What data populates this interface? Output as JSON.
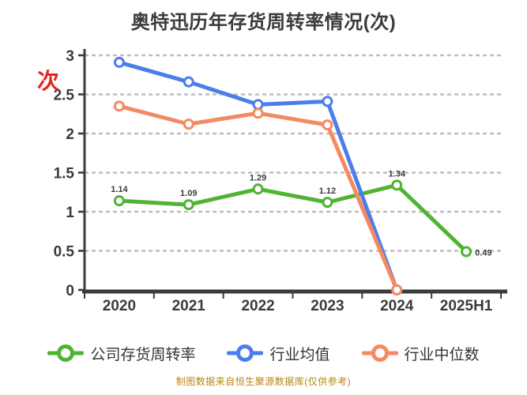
{
  "title": "奥特迅历年存货周转率情况(次)",
  "unit_label": "次",
  "caption": "制图数据来自恒生聚源数据库(仅供参考)",
  "colors": {
    "company": "#50b332",
    "industry_avg": "#4d7de8",
    "industry_median": "#f48a62",
    "unit": "#e52420",
    "caption": "#b8860e",
    "grid": "#bdbdbd",
    "axis": "#3b3b3b",
    "text": "#3b3b3b",
    "point_label": "#3b3b3b"
  },
  "chart_data": {
    "type": "line",
    "title": "奥特迅历年存货周转率情况(次)",
    "categories": [
      "2020",
      "2021",
      "2022",
      "2023",
      "2024",
      "2025H1"
    ],
    "series": [
      {
        "name": "公司存货周转率",
        "color_key": "company",
        "values": [
          1.14,
          1.09,
          1.29,
          1.12,
          1.34,
          0.49
        ],
        "show_labels": true
      },
      {
        "name": "行业均值",
        "color_key": "industry_avg",
        "values": [
          2.91,
          2.66,
          2.37,
          2.41,
          0,
          null
        ],
        "show_labels": false
      },
      {
        "name": "行业中位数",
        "color_key": "industry_median",
        "values": [
          2.35,
          2.12,
          2.26,
          2.11,
          0,
          null
        ],
        "show_labels": false
      }
    ],
    "xlabel": "",
    "ylabel": "次",
    "ylim": [
      0,
      3
    ],
    "ytick_step": 0.5,
    "grid": true,
    "grid_style": "dashed",
    "legend_position": "bottom"
  }
}
